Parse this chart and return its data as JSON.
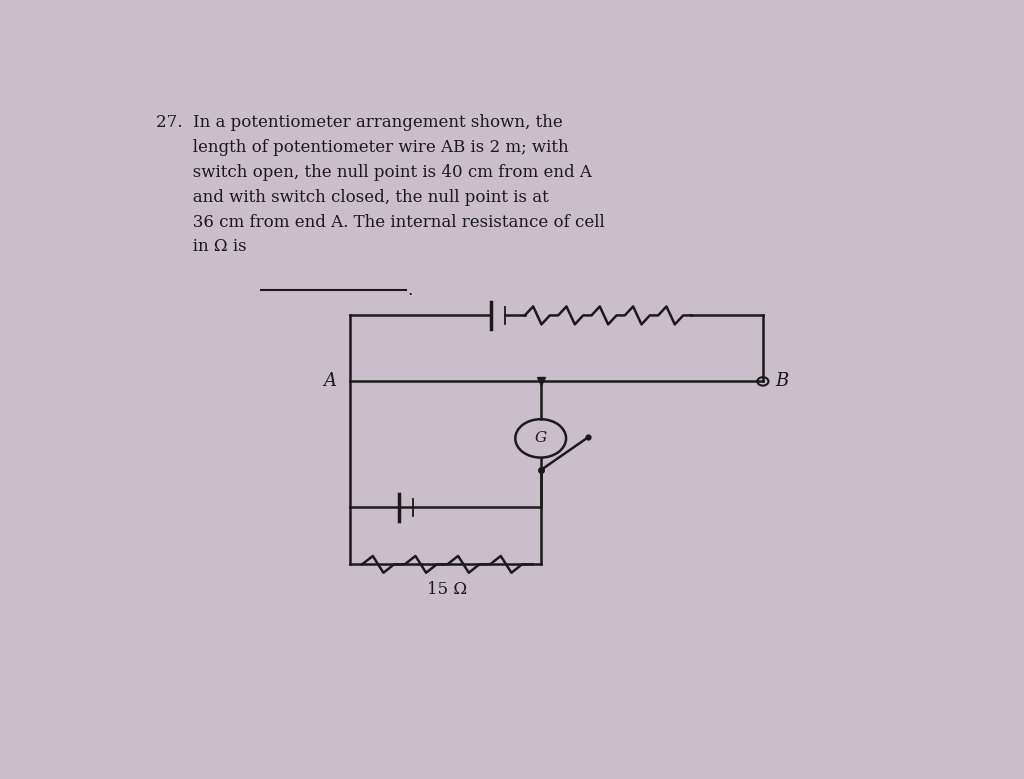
{
  "bg_color": "#cbbecb",
  "text_color": "#1a1a1a",
  "line_color": "#1a1a1a",
  "label_A": "A",
  "label_B": "B",
  "label_G": "G",
  "label_15ohm": "15 Ω",
  "fig_width": 10.24,
  "fig_height": 7.79,
  "dpi": 100
}
